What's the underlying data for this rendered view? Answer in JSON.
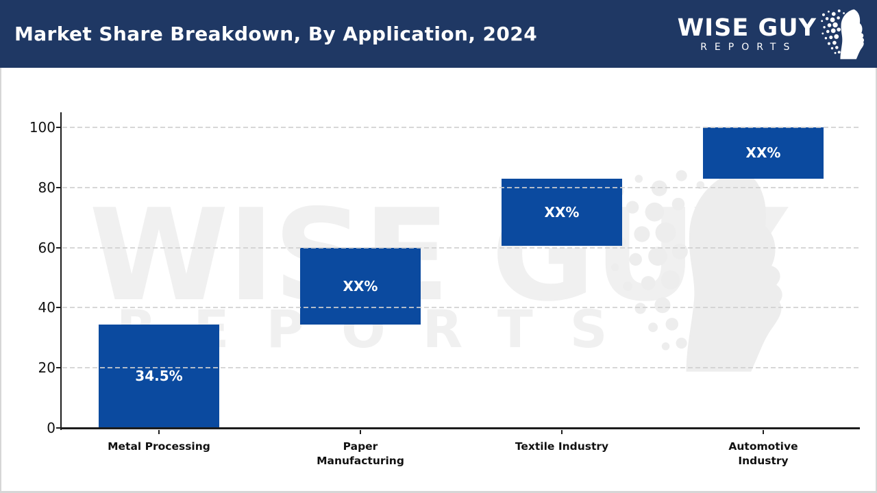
{
  "header": {
    "title": "Market Share Breakdown, By Application, 2024",
    "logo": {
      "brand": "WISE GUY",
      "sub": "REPORTS"
    }
  },
  "watermark": {
    "brand": "WISE GUY",
    "sub": "REPORTS"
  },
  "colors": {
    "header_bg": "#1f3864",
    "bar_blue": "#0b4a9f",
    "bar_label": "#ffffff",
    "gridline": "#d9d9d9",
    "axis": "#1c1c1c",
    "watermark": "#f0f0f0",
    "page_border": "#d6d6d6"
  },
  "chart_data": {
    "type": "bar",
    "variant": "floating-waterfall",
    "title": "Market Share Breakdown, By Application, 2024",
    "categories": [
      "Metal Processing",
      "Paper Manufacturing",
      "Textile Industry",
      "Automotive Industry"
    ],
    "category_label_lines": [
      [
        "Metal Processing"
      ],
      [
        "Paper",
        "Manufacturing"
      ],
      [
        "Textile Industry"
      ],
      [
        "Automotive",
        "Industry"
      ]
    ],
    "bars": [
      {
        "category": "Metal Processing",
        "start": 0,
        "end": 34.5,
        "label": "34.5%"
      },
      {
        "category": "Paper Manufacturing",
        "start": 34.5,
        "end": 60,
        "label": "XX%"
      },
      {
        "category": "Textile Industry",
        "start": 60.5,
        "end": 83,
        "label": "XX%"
      },
      {
        "category": "Automotive Industry",
        "start": 83,
        "end": 100,
        "label": "XX%"
      }
    ],
    "xlabel": "",
    "ylabel": "",
    "y_ticks": [
      0,
      20,
      40,
      60,
      80,
      100
    ],
    "ylim": [
      0,
      105
    ],
    "grid": "horizontal-dashed",
    "legend": "none",
    "bar_color": "#0b4a9f",
    "bar_label_color": "#ffffff"
  }
}
